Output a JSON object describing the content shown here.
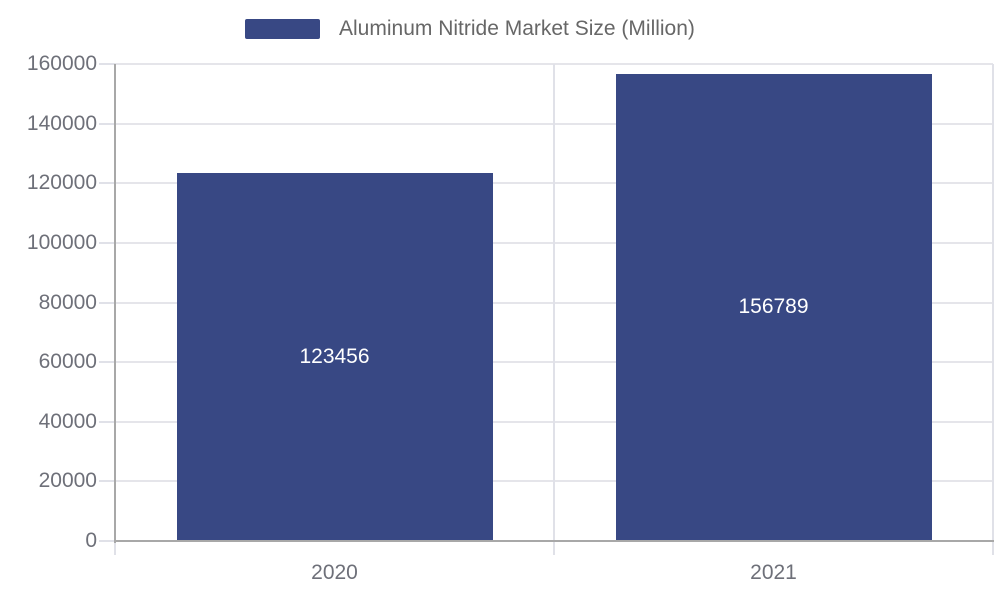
{
  "chart_data": {
    "type": "bar",
    "title": "",
    "legend": "Aluminum Nitride Market Size (Million)",
    "legend_position": "top-center",
    "categories": [
      "2020",
      "2021"
    ],
    "series": [
      {
        "name": "Aluminum Nitride Market Size (Million)",
        "values": [
          123456,
          156789
        ]
      }
    ],
    "data_labels": [
      "123456",
      "156789"
    ],
    "data_label_position": "inside-center",
    "xlabel": "",
    "ylabel": "",
    "ylim": [
      0,
      160000
    ],
    "ytick_step": 20000,
    "ytick_labels": [
      "0",
      "20000",
      "40000",
      "60000",
      "80000",
      "100000",
      "120000",
      "140000",
      "160000"
    ],
    "grid": true,
    "colors": {
      "bar": "#384884",
      "grid_line": "#E5E5EA",
      "split_line": "#E0E1E8",
      "axis_line": "#A8A8A8",
      "tick_line": "#E0E1E8",
      "axis_label": "#6E7079",
      "legend_text": "#676767",
      "data_label": "#FFFFFF",
      "background": "#FFFFFF"
    }
  }
}
